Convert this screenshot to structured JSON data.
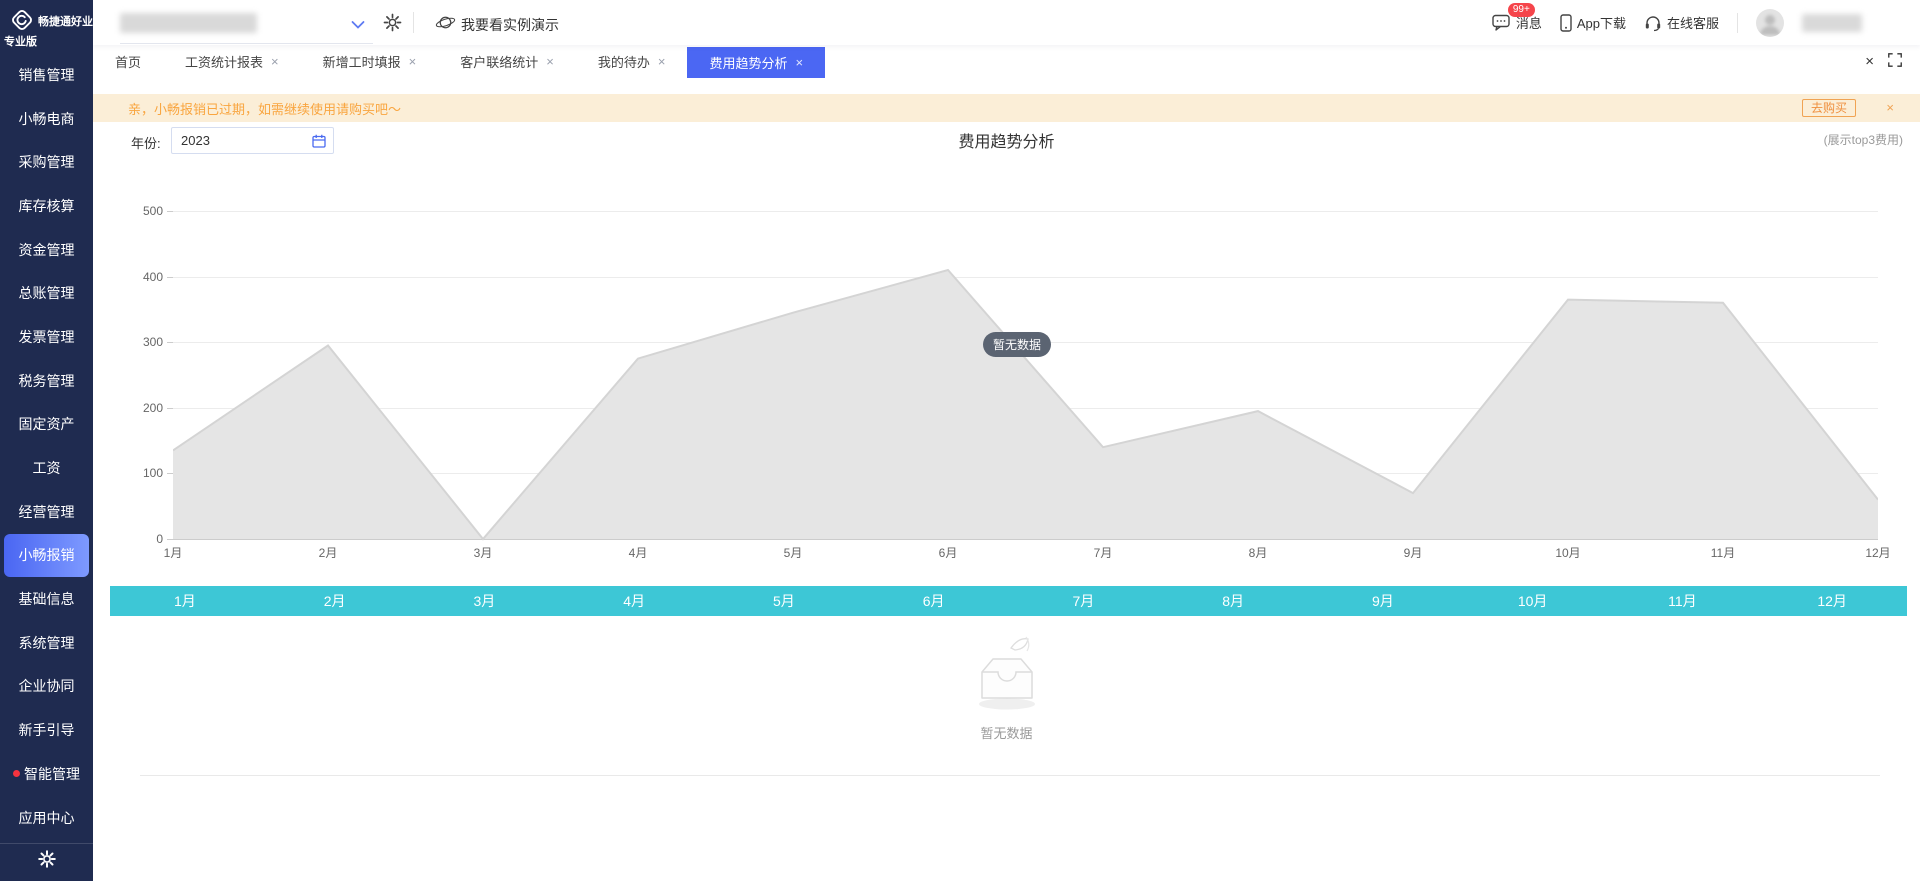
{
  "branding": {
    "logo_title": "畅捷通好业财",
    "logo_subtitle": "专业版"
  },
  "topbar": {
    "demo_link": "我要看实例演示",
    "messages_label": "消息",
    "messages_badge": "99+",
    "app_download_label": "App下载",
    "online_service_label": "在线客服"
  },
  "sidebar": {
    "items": [
      {
        "label": "销售管理",
        "active": false,
        "dot": false
      },
      {
        "label": "小畅电商",
        "active": false,
        "dot": false
      },
      {
        "label": "采购管理",
        "active": false,
        "dot": false
      },
      {
        "label": "库存核算",
        "active": false,
        "dot": false
      },
      {
        "label": "资金管理",
        "active": false,
        "dot": false
      },
      {
        "label": "总账管理",
        "active": false,
        "dot": false
      },
      {
        "label": "发票管理",
        "active": false,
        "dot": false
      },
      {
        "label": "税务管理",
        "active": false,
        "dot": false
      },
      {
        "label": "固定资产",
        "active": false,
        "dot": false
      },
      {
        "label": "工资",
        "active": false,
        "dot": false
      },
      {
        "label": "经营管理",
        "active": false,
        "dot": false
      },
      {
        "label": "小畅报销",
        "active": true,
        "dot": false
      },
      {
        "label": "基础信息",
        "active": false,
        "dot": false
      },
      {
        "label": "系统管理",
        "active": false,
        "dot": false
      },
      {
        "label": "企业协同",
        "active": false,
        "dot": false
      },
      {
        "label": "新手引导",
        "active": false,
        "dot": false
      },
      {
        "label": "智能管理",
        "active": false,
        "dot": true
      },
      {
        "label": "应用中心",
        "active": false,
        "dot": false
      }
    ]
  },
  "tabs": {
    "items": [
      {
        "label": "首页",
        "closable": false,
        "active": false
      },
      {
        "label": "工资统计报表",
        "closable": true,
        "active": false
      },
      {
        "label": "新增工时填报",
        "closable": true,
        "active": false
      },
      {
        "label": "客户联络统计",
        "closable": true,
        "active": false
      },
      {
        "label": "我的待办",
        "closable": true,
        "active": false
      },
      {
        "label": "费用趋势分析",
        "closable": true,
        "active": true
      }
    ]
  },
  "notice": {
    "text": "亲，小畅报销已过期，如需继续使用请购买吧～",
    "buy_label": "去购买"
  },
  "filter": {
    "year_label": "年份:",
    "year_value": "2023"
  },
  "chart_header": {
    "title": "费用趋势分析",
    "note": "(展示top3费用)"
  },
  "chart_data": {
    "type": "area",
    "title": "费用趋势分析",
    "months": [
      "1月",
      "2月",
      "3月",
      "4月",
      "5月",
      "6月",
      "7月",
      "8月",
      "9月",
      "10月",
      "11月",
      "12月"
    ],
    "values": [
      135,
      295,
      0,
      275,
      345,
      410,
      140,
      195,
      70,
      365,
      360,
      60
    ],
    "ylim": [
      0,
      500
    ],
    "yticks": [
      0,
      100,
      200,
      300,
      400,
      500
    ],
    "grid": true,
    "legend": "none",
    "area_color": "#e5e5e5",
    "line_color": "#d4d4d4",
    "tooltip_text": "暂无数据"
  },
  "empty_state": {
    "text": "暂无数据"
  },
  "icons": {
    "close": "×",
    "accent_blue": "#4b67f3",
    "teal": "#3dc7d6",
    "sidebar_navy": "#1f2b50",
    "notice_orange": "#f9a53f",
    "badge_red": "#f5454b"
  }
}
